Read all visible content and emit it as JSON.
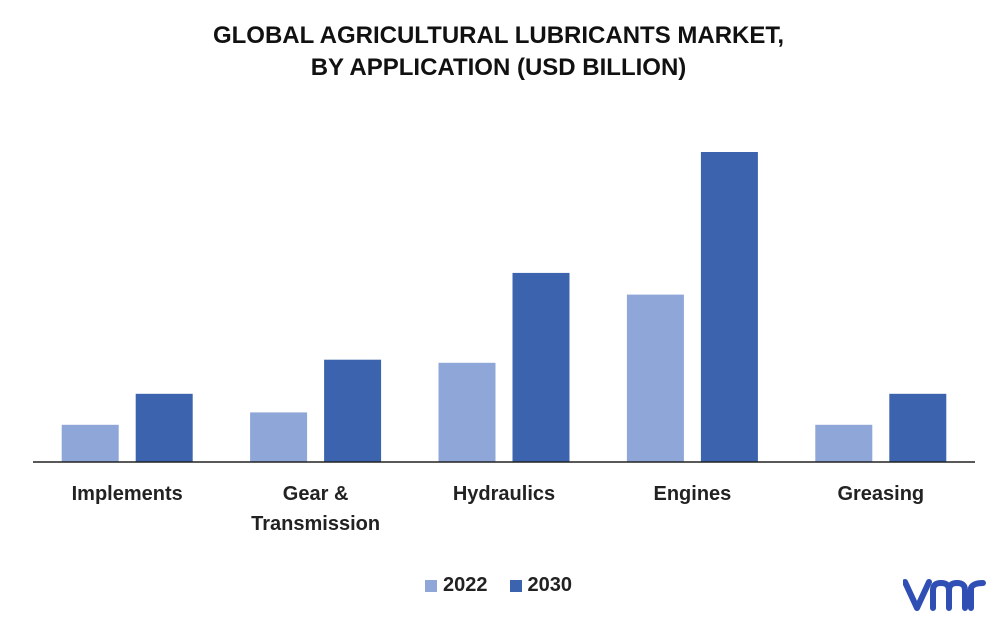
{
  "chart_data": {
    "type": "bar",
    "title_lines": [
      "GLOBAL AGRICULTURAL LUBRICANTS MARKET,",
      "BY APPLICATION (USD BILLION)"
    ],
    "categories": [
      [
        "Implements"
      ],
      [
        "Gear &",
        "Transmission"
      ],
      [
        "Hydraulics"
      ],
      [
        "Engines"
      ],
      [
        "Greasing"
      ]
    ],
    "series": [
      {
        "name": "2022",
        "color": "#8FA6D8",
        "values": [
          1.2,
          1.6,
          3.2,
          5.4,
          1.2
        ]
      },
      {
        "name": "2030",
        "color": "#3C63AE",
        "values": [
          2.2,
          3.3,
          6.1,
          10.0,
          2.2
        ]
      }
    ],
    "ylim": [
      0,
      10
    ],
    "grid": false,
    "legend_position": "bottom-center"
  },
  "logo": {
    "name": "vmr-logo",
    "color": "#2F4FB4"
  }
}
